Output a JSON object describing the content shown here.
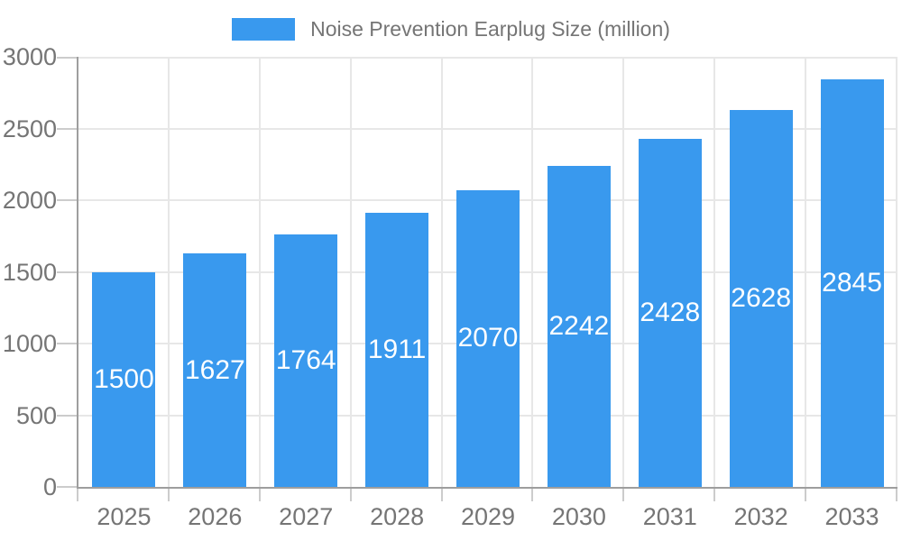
{
  "chart_data": {
    "type": "bar",
    "title": "Noise Prevention Earplug Size (million)",
    "legend": {
      "label": "Noise Prevention Earplug Size (million)",
      "position": "top"
    },
    "categories": [
      "2025",
      "2026",
      "2027",
      "2028",
      "2029",
      "2030",
      "2031",
      "2032",
      "2033"
    ],
    "values": [
      1500,
      1627,
      1764,
      1911,
      2070,
      2242,
      2428,
      2628,
      2845
    ],
    "xlabel": "",
    "ylabel": "",
    "ylim": [
      0,
      3000
    ],
    "yticks": [
      0,
      500,
      1000,
      1500,
      2000,
      2500,
      3000
    ],
    "grid": true,
    "bar_label_position": "inside-center",
    "colors": {
      "bar": "#3999EE",
      "bar_label": "#FFFFFF",
      "grid": "#E7E7E7",
      "axis": "#9E9E9E",
      "tick": "#CCCCCC",
      "text": "#757575",
      "background": "#FFFFFF"
    }
  }
}
